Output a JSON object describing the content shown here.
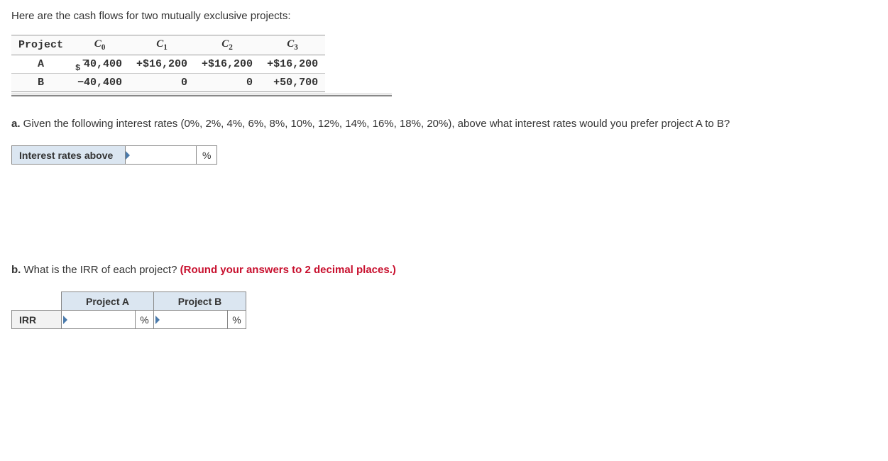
{
  "intro_text": "Here are the cash flows for two mutually exclusive projects:",
  "cashflow": {
    "headers": {
      "project": "Project",
      "c0_base": "C",
      "c0_sub": "0",
      "c1_base": "C",
      "c1_sub": "1",
      "c2_base": "C",
      "c2_sub": "2",
      "c3_base": "C",
      "c3_sub": "3"
    },
    "row_a": {
      "label": "A",
      "c0": "40,400",
      "c0_neg": "−",
      "c0_dollar": "$",
      "c1": "+$16,200",
      "c2": "+$16,200",
      "c3": "+$16,200"
    },
    "row_b": {
      "label": "B",
      "c0": "−40,400",
      "c1": "0",
      "c2": "0",
      "c3": "+50,700"
    },
    "col_widths": [
      "90px",
      "100px",
      "110px",
      "110px",
      "110px"
    ],
    "header_bg": "#fafafa",
    "row_b_bg": "#fafafa",
    "border_color": "#999"
  },
  "question_a": {
    "prefix": "a.",
    "text_1": " Given the following interest rates (0%, 2%, 4%, 6%, 8%, 10%, 12%, 14%, 16%, 18%, 20%), above what interest rates would you prefer project A to B?"
  },
  "answer_a": {
    "label": "Interest rates above",
    "value": "",
    "unit": "%"
  },
  "question_b": {
    "prefix": "b.",
    "text_1": " What is the IRR of each project? ",
    "red": "(Round your answers to 2 decimal places.)"
  },
  "irr": {
    "row_label": "IRR",
    "proj_a_header": "Project A",
    "proj_b_header": "Project B",
    "proj_a_value": "",
    "proj_b_value": "",
    "unit": "%"
  },
  "colors": {
    "label_bg": "#dbe6f1",
    "alt_bg": "#f2f2f2",
    "triangle": "#4a7aab",
    "red": "#c8102e",
    "border": "#888888"
  }
}
